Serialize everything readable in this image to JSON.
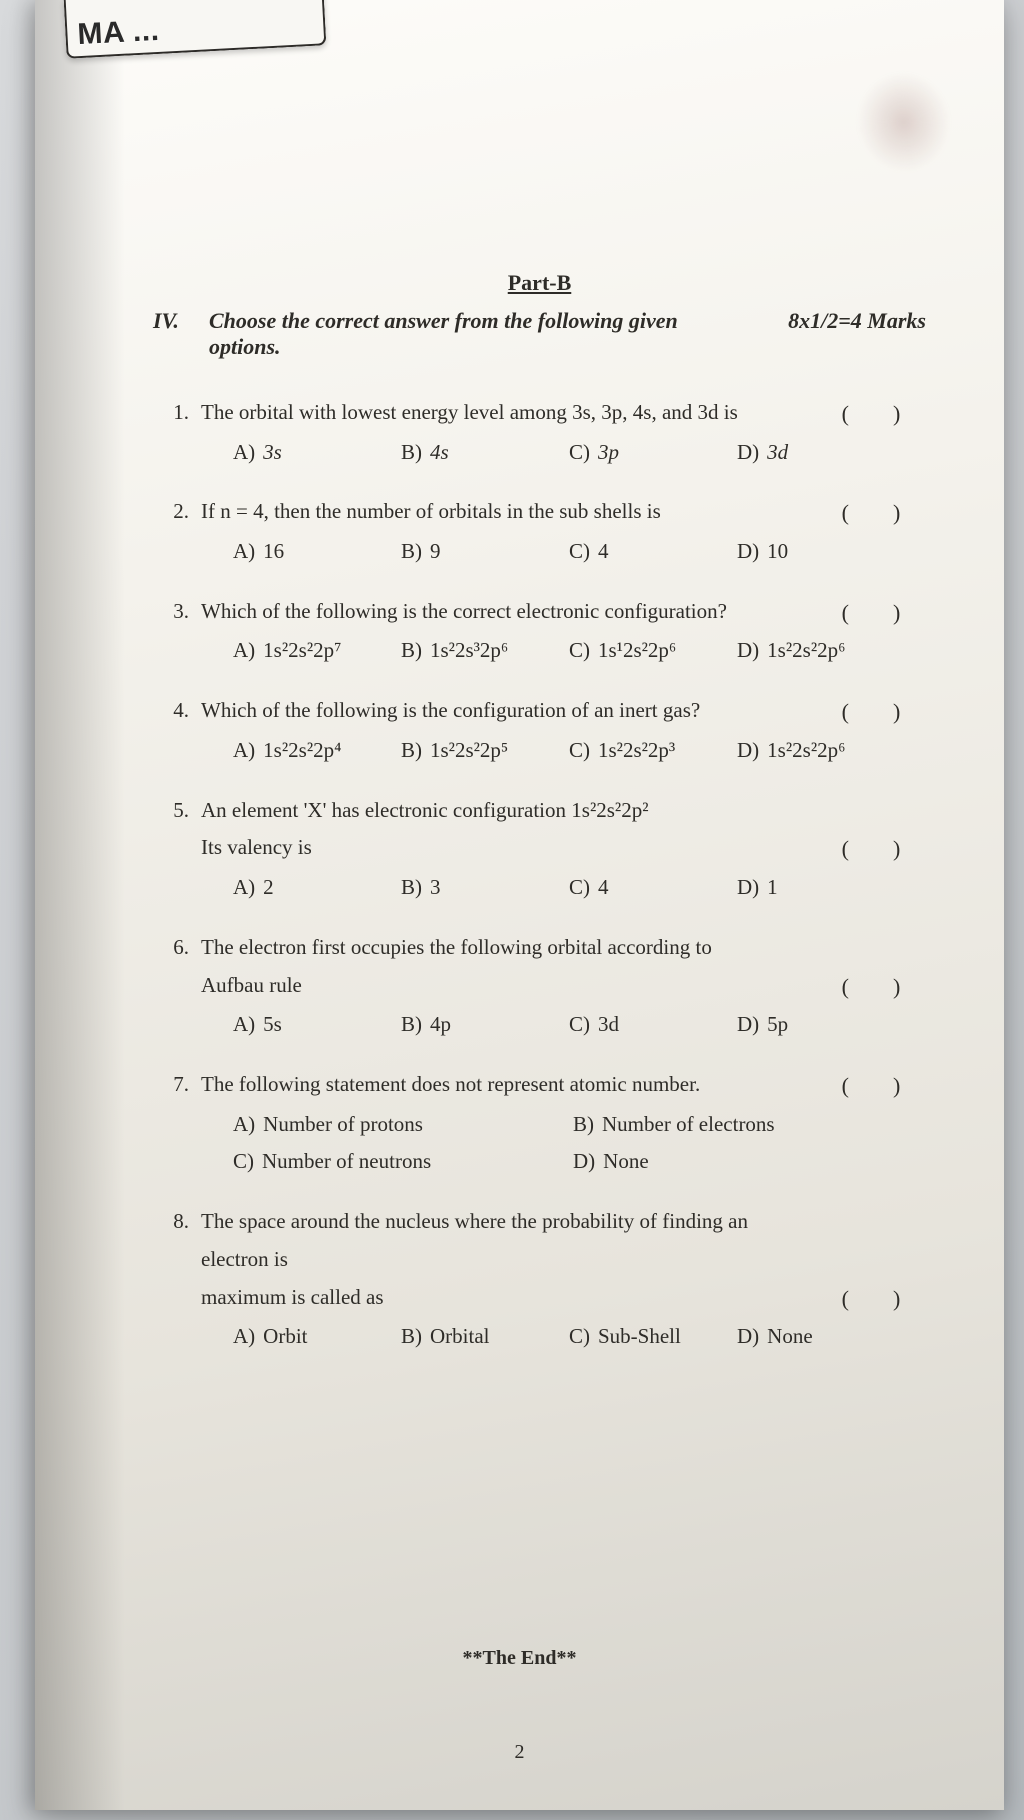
{
  "topclip_text": "MA ...",
  "part_title": "Part-B",
  "section_roman": "IV.",
  "instruction": "Choose the correct answer from the following given options.",
  "marks": "8x1/2=4 Marks",
  "blank": "(  )",
  "questions": [
    {
      "num": "1.",
      "text": "The orbital with lowest energy level among 3s, 3p, 4s, and 3d is",
      "options": [
        {
          "label": "A)",
          "text": "3s",
          "style": "italic"
        },
        {
          "label": "B)",
          "text": "4s",
          "style": "italic"
        },
        {
          "label": "C)",
          "text": "3p",
          "style": "italic"
        },
        {
          "label": "D)",
          "text": "3d",
          "style": "italic"
        }
      ]
    },
    {
      "num": "2.",
      "text": "If n = 4, then the number of orbitals in the sub shells is",
      "options": [
        {
          "label": "A)",
          "text": "16"
        },
        {
          "label": "B)",
          "text": "9"
        },
        {
          "label": "C)",
          "text": "4"
        },
        {
          "label": "D)",
          "text": "10"
        }
      ]
    },
    {
      "num": "3.",
      "text": "Which of the following is the correct electronic configuration?",
      "options": [
        {
          "label": "A)",
          "text": "1s²2s²2p⁷"
        },
        {
          "label": "B)",
          "text": "1s²2s³2p⁶"
        },
        {
          "label": "C)",
          "text": "1s¹2s²2p⁶"
        },
        {
          "label": "D)",
          "text": "1s²2s²2p⁶"
        }
      ]
    },
    {
      "num": "4.",
      "text": "Which of the following is the configuration of an inert gas?",
      "options": [
        {
          "label": "A)",
          "text": "1s²2s²2p⁴"
        },
        {
          "label": "B)",
          "text": "1s²2s²2p⁵"
        },
        {
          "label": "C)",
          "text": "1s²2s²2p³"
        },
        {
          "label": "D)",
          "text": "1s²2s²2p⁶"
        }
      ]
    },
    {
      "num": "5.",
      "text": "An element 'X' has electronic configuration 1s²2s²2p²",
      "subtext": "Its valency is",
      "options": [
        {
          "label": "A)",
          "text": "2"
        },
        {
          "label": "B)",
          "text": "3"
        },
        {
          "label": "C)",
          "text": "4"
        },
        {
          "label": "D)",
          "text": "1"
        }
      ]
    },
    {
      "num": "6.",
      "text": "The electron first occupies the following orbital according to",
      "subtext": "Aufbau rule",
      "options": [
        {
          "label": "A)",
          "text": "5s"
        },
        {
          "label": "B)",
          "text": "4p"
        },
        {
          "label": "C)",
          "text": "3d"
        },
        {
          "label": "D)",
          "text": "5p"
        }
      ]
    },
    {
      "num": "7.",
      "text": "The following statement does not represent atomic number.",
      "wide_opts": true,
      "options": [
        {
          "label": "A)",
          "text": "Number of protons"
        },
        {
          "label": "B)",
          "text": "Number of electrons"
        },
        {
          "label": "C)",
          "text": "Number of neutrons"
        },
        {
          "label": "D)",
          "text": "None"
        }
      ]
    },
    {
      "num": "8.",
      "text": "The space around the nucleus where the probability of finding an electron is",
      "subtext": "maximum is called as",
      "options": [
        {
          "label": "A)",
          "text": "Orbit"
        },
        {
          "label": "B)",
          "text": "Orbital"
        },
        {
          "label": "C)",
          "text": "Sub-Shell"
        },
        {
          "label": "D)",
          "text": "None"
        }
      ]
    }
  ],
  "footer": "**The End**",
  "page_number": "2"
}
